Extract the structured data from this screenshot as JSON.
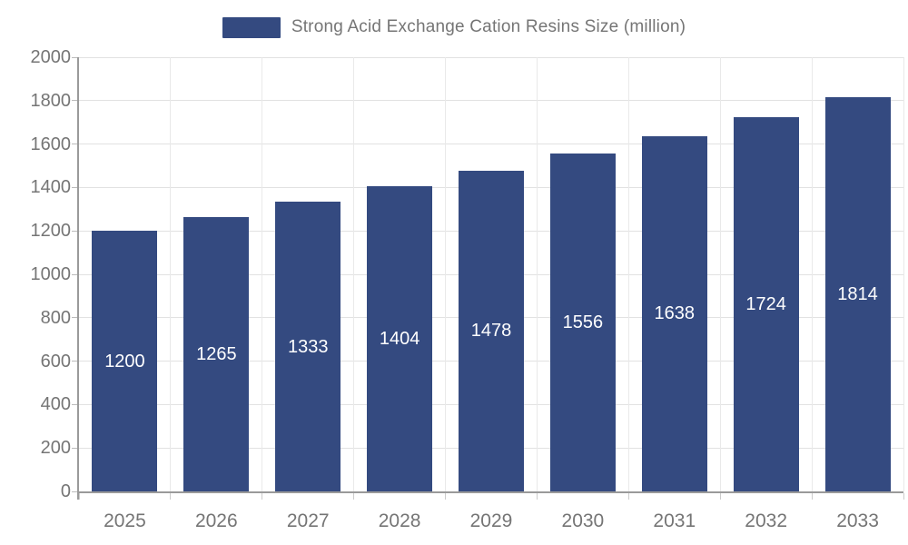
{
  "legend": {
    "label": "Strong Acid Exchange Cation Resins Size (million)"
  },
  "chart_data": {
    "type": "bar",
    "title": "Strong Acid Exchange Cation Resins Size (million)",
    "categories": [
      "2025",
      "2026",
      "2027",
      "2028",
      "2029",
      "2030",
      "2031",
      "2032",
      "2033"
    ],
    "values": [
      1200,
      1265,
      1333,
      1404,
      1478,
      1556,
      1638,
      1724,
      1814
    ],
    "xlabel": "",
    "ylabel": "",
    "ylim": [
      0,
      2000
    ],
    "ytick_step": 200,
    "ytick_labels": [
      "0",
      "200",
      "400",
      "600",
      "800",
      "1000",
      "1200",
      "1400",
      "1600",
      "1800",
      "2000"
    ],
    "grid": true,
    "legend_position": "top-center",
    "bar_label_position": "inside-center",
    "colors": {
      "bar": "#344A80",
      "bar_label": "#ffffff",
      "axis_text": "#757575",
      "grid_line_h": "#e2e2e2",
      "grid_line_v": "#e9e9e9",
      "axis_line": "#9a9a9a"
    }
  }
}
